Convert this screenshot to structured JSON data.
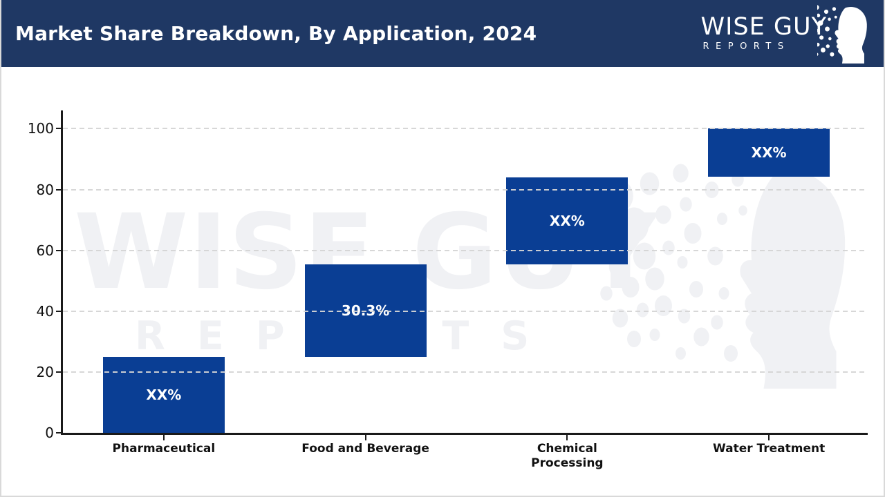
{
  "header": {
    "title": "Market Share Breakdown, By Application, 2024",
    "bg_color": "#1f3864",
    "logo": {
      "line1": "WISE GUY",
      "line2": "REPORTS"
    }
  },
  "watermark": {
    "line1": "WISE GUY",
    "line2": "REPORTS"
  },
  "chart_data": {
    "type": "bar",
    "subtype": "floating-waterfall",
    "title": "Market Share Breakdown, By Application, 2024",
    "categories": [
      "Pharmaceutical",
      "Food and Beverage",
      "Chemical\nProcessing",
      "Water Treatment"
    ],
    "bars": [
      {
        "category": "Pharmaceutical",
        "start": 0,
        "end": 25,
        "label": "XX%"
      },
      {
        "category": "Food and Beverage",
        "start": 25,
        "end": 55.3,
        "label": "30.3%"
      },
      {
        "category": "Chemical Processing",
        "start": 55.3,
        "end": 84.1,
        "label": "XX%"
      },
      {
        "category": "Water Treatment",
        "start": 84.1,
        "end": 100,
        "label": "XX%"
      }
    ],
    "yticks": [
      0,
      20,
      40,
      60,
      80,
      100
    ],
    "ylim": [
      0,
      106
    ],
    "xlabel": "",
    "ylabel": "",
    "grid": true,
    "legend": null,
    "bar_color": "#0a3e94",
    "grid_color": "#d8d8d8",
    "axis_color": "#1a1a1a"
  }
}
